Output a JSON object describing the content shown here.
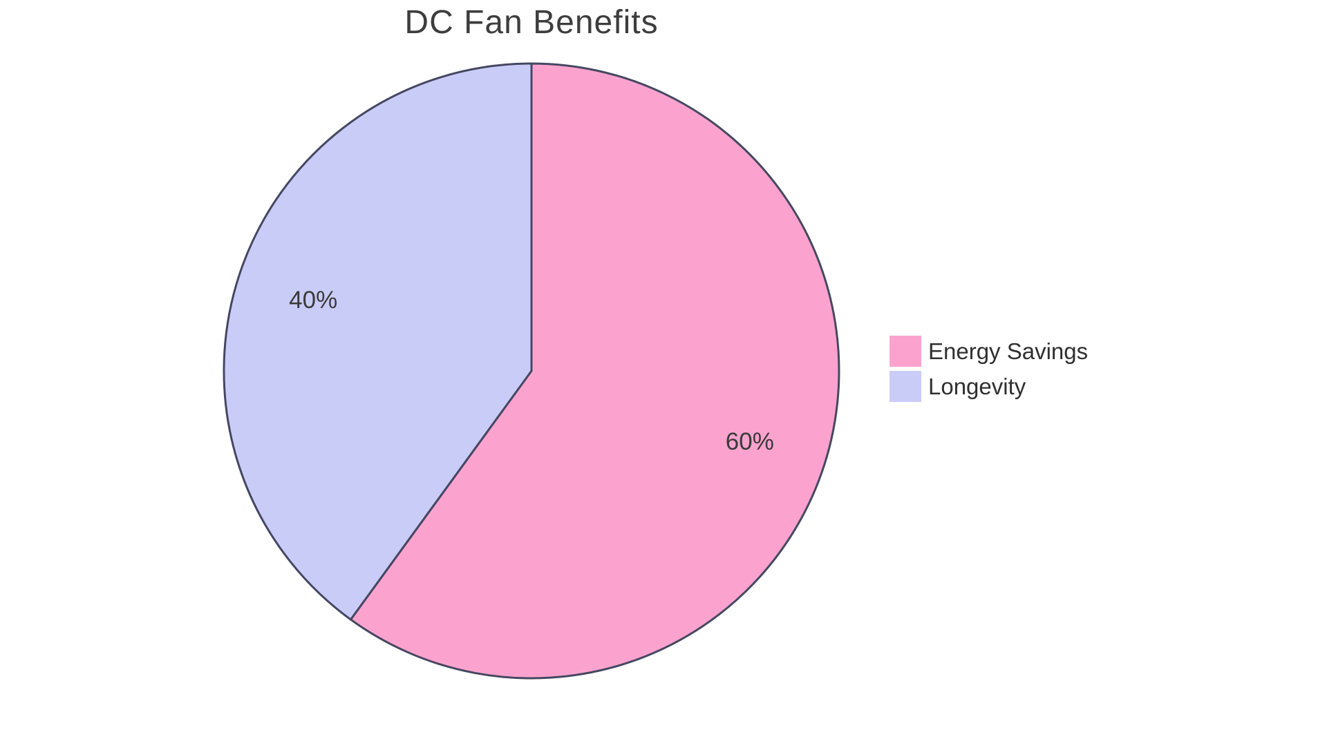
{
  "chart_data": {
    "type": "pie",
    "title": "DC Fan Benefits",
    "categories": [
      "Energy Savings",
      "Longevity"
    ],
    "values": [
      60,
      40
    ],
    "slice_labels": [
      "60%",
      "40%"
    ],
    "colors": [
      "#FBA3CE",
      "#CACCF8"
    ],
    "border_color": "#454761",
    "title_color": "#3D3D3D",
    "label_color": "#3A3A3A",
    "start_angle": "top",
    "direction": "clockwise",
    "legend_position": "right",
    "grid": false
  },
  "legend": {
    "items": [
      {
        "label": "Energy Savings",
        "color": "#FBA3CE"
      },
      {
        "label": "Longevity",
        "color": "#CACCF8"
      }
    ]
  }
}
